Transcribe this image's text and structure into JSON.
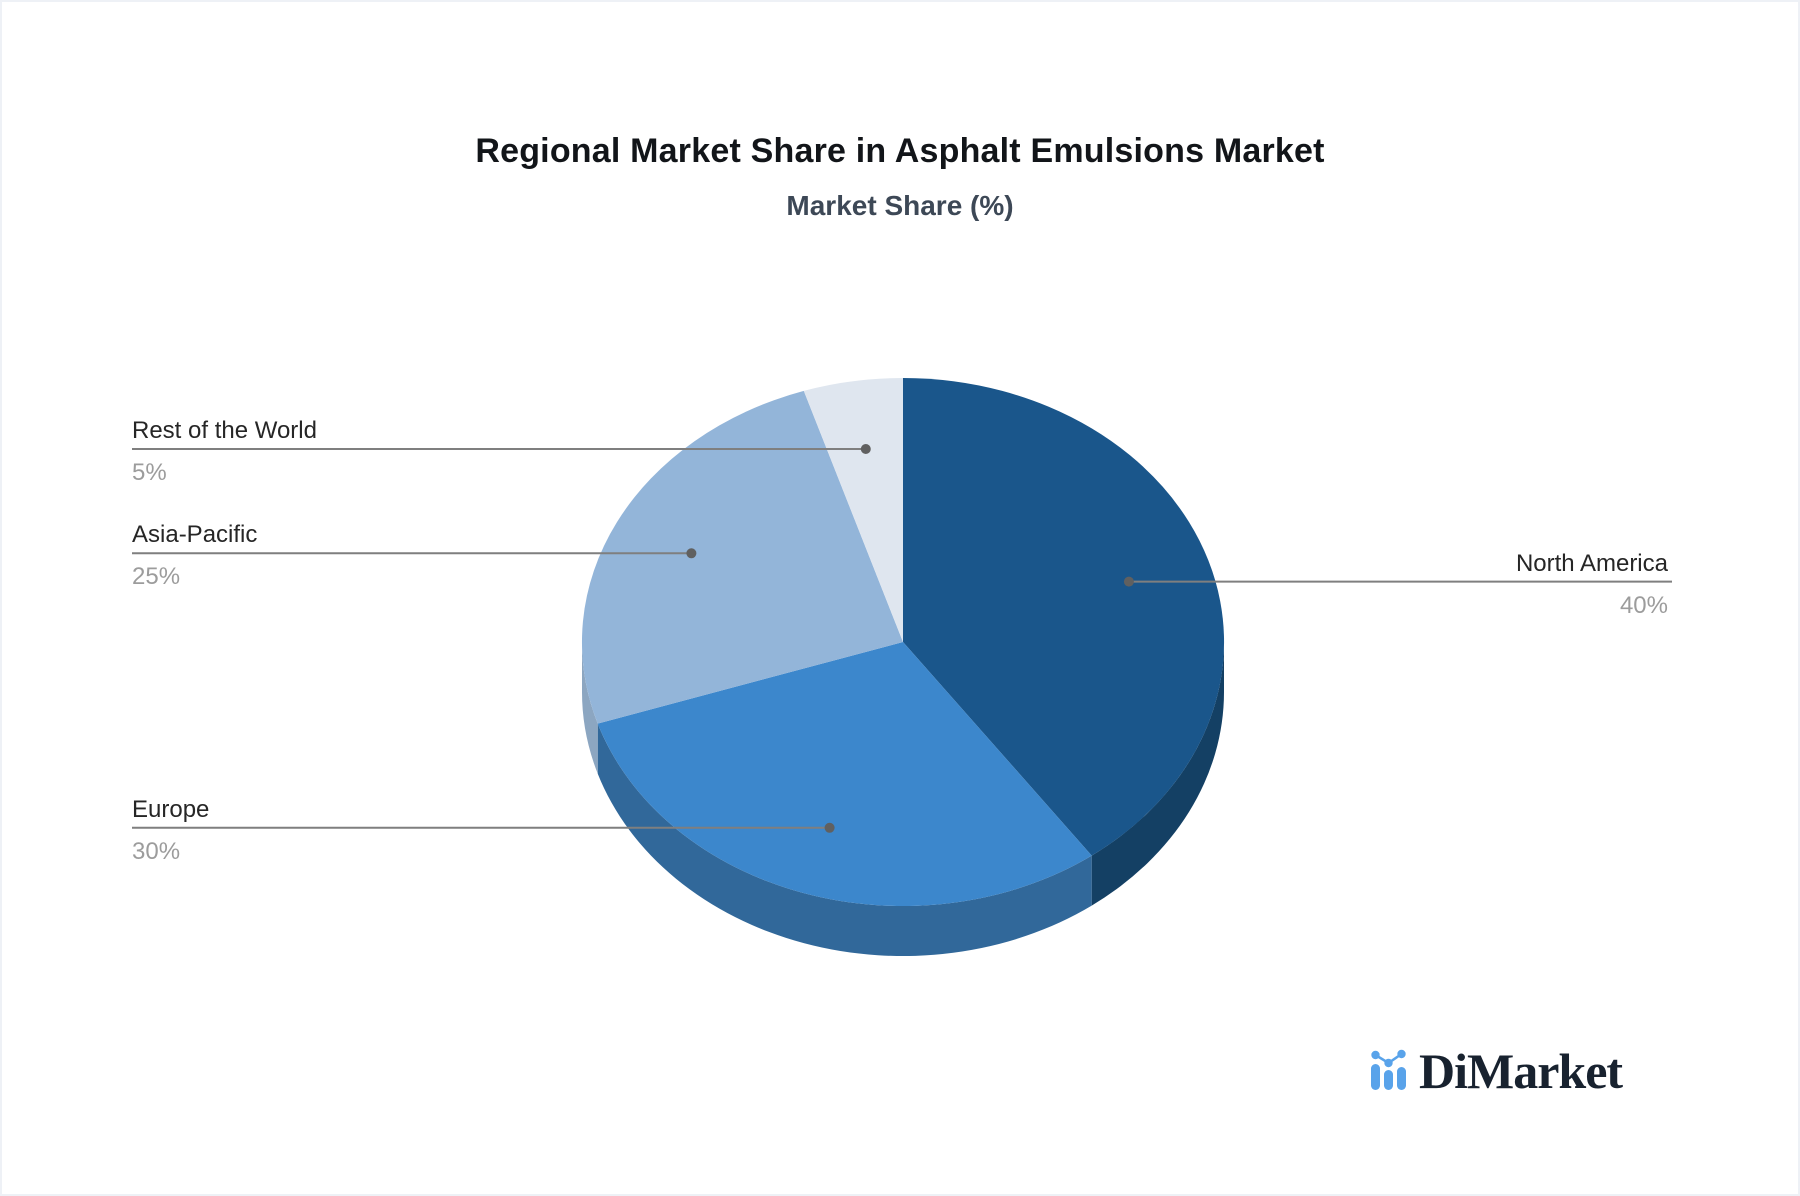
{
  "chart_data": {
    "type": "pie",
    "projection": "3d",
    "title": "Regional Market Share in Asphalt Emulsions Market",
    "subtitle": "Market Share (%)",
    "unit": "%",
    "categories": [
      "North America",
      "Europe",
      "Asia-Pacific",
      "Rest of the World"
    ],
    "values": [
      40,
      30,
      25,
      5
    ],
    "value_labels": [
      "40%",
      "30%",
      "25%",
      "5%"
    ],
    "colors": [
      "#1A568B",
      "#3C87CC",
      "#93B5D9",
      "#DFE6EF"
    ],
    "side_colors": [
      "#144064",
      "#31689A",
      "#8CA6C1",
      "#CBD6E4"
    ],
    "label_sides": [
      "right",
      "left",
      "left",
      "left"
    ],
    "start_angle_deg": 0,
    "direction": "clockwise",
    "legend": "none",
    "grid": "off",
    "leader_line_color": "#7F7F7F",
    "leader_dot_color": "#606060",
    "label_text_color": "#262626",
    "value_text_color": "#9C9C9C"
  },
  "logo": {
    "text": "DiMarket",
    "icon": "bar-line-chart-icon",
    "icon_color": "#59A3EA",
    "text_color": "#18222F"
  }
}
